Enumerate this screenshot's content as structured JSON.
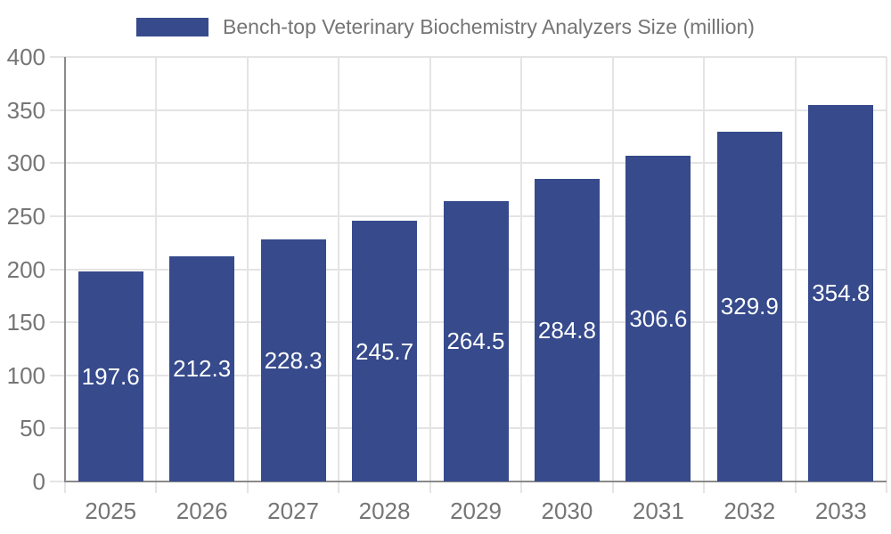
{
  "legend": {
    "label": "Bench-top Veterinary Biochemistry Analyzers Size (million)"
  },
  "colors": {
    "bar": "#364a8c",
    "grid": "#e4e4e4",
    "axis": "#8a8a8a",
    "tick_label": "#757575",
    "value_label": "#ffffff",
    "legend_text": "#757575",
    "background": "#ffffff"
  },
  "chart_data": {
    "type": "bar",
    "title": "Bench-top Veterinary Biochemistry Analyzers Size (million)",
    "categories": [
      "2025",
      "2026",
      "2027",
      "2028",
      "2029",
      "2030",
      "2031",
      "2032",
      "2033"
    ],
    "series": [
      {
        "name": "Bench-top Veterinary Biochemistry Analyzers Size (million)",
        "values": [
          197.6,
          212.3,
          228.3,
          245.7,
          264.5,
          284.8,
          306.6,
          329.9,
          354.8
        ]
      }
    ],
    "xlabel": "",
    "ylabel": "",
    "ylim": [
      0,
      400
    ],
    "ytick_step": 50,
    "ytick_labels": [
      "0",
      "50",
      "100",
      "150",
      "200",
      "250",
      "300",
      "350",
      "400"
    ],
    "grid": true,
    "legend_position": "top",
    "value_labels": "inside-center"
  }
}
